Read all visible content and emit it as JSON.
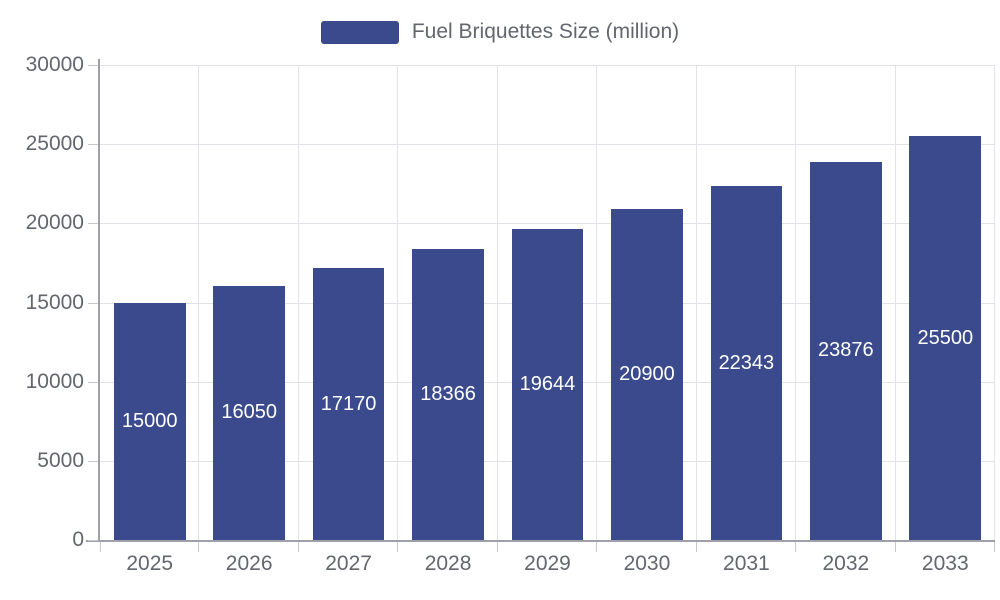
{
  "chart_data": {
    "type": "bar",
    "title": "Fuel Briquettes Size (million)",
    "legend": {
      "position": "top",
      "entries": [
        "Fuel Briquettes Size (million)"
      ]
    },
    "categories": [
      "2025",
      "2026",
      "2027",
      "2028",
      "2029",
      "2030",
      "2031",
      "2032",
      "2033"
    ],
    "series": [
      {
        "name": "Fuel Briquettes Size (million)",
        "values": [
          15000,
          16050,
          17170,
          18366,
          19644,
          20900,
          22343,
          23876,
          25500
        ]
      }
    ],
    "bar_labels": [
      "15000",
      "16050",
      "17170",
      "18366",
      "19644",
      "20900",
      "22343",
      "23876",
      "25500"
    ],
    "xlabel": "",
    "ylabel": "",
    "ylim": [
      0,
      30000
    ],
    "y_ticks": [
      0,
      5000,
      10000,
      15000,
      20000,
      25000,
      30000
    ],
    "grid": true,
    "colors": {
      "bar": "#3A4A8C",
      "bar_value_text": "#FFFFFF",
      "axis_label_text": "#63666D",
      "legend_text": "#63666D",
      "grid_line": "#E1E3E8",
      "axis_line": "#9DA0A8",
      "tick_mark": "#C6C9CE",
      "background": "#FFFFFF"
    }
  }
}
